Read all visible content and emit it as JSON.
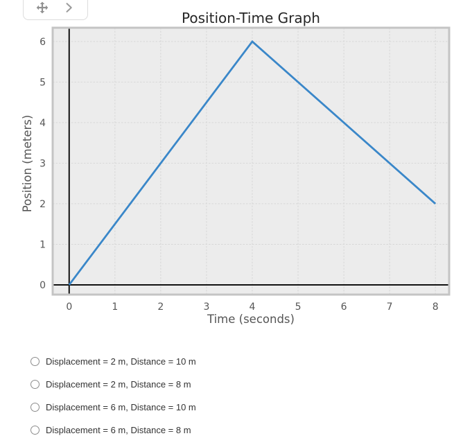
{
  "toolbar": {
    "tools": [
      {
        "icon": "move-icon"
      },
      {
        "icon": "chevron-right-icon"
      }
    ]
  },
  "chart_data": {
    "type": "line",
    "title": "Position-Time Graph",
    "xlabel": "Time (seconds)",
    "ylabel": "Position (meters)",
    "x": [
      0,
      4,
      8
    ],
    "y": [
      0,
      6,
      2
    ],
    "xticks": [
      0,
      1,
      2,
      3,
      4,
      5,
      6,
      7,
      8
    ],
    "yticks": [
      0,
      1,
      2,
      3,
      4,
      5,
      6
    ],
    "xlim": [
      -0.36,
      8.3
    ],
    "ylim": [
      -0.24,
      6.34
    ],
    "grid": true,
    "legend": "none",
    "line_color": "#3a87c9",
    "plot_background": "#ececec",
    "grid_color": "#d7d7d7",
    "frame_color": "#c4c4c4",
    "axis_line_color": "#111111",
    "tick_color": "#555555"
  },
  "question": {
    "options": [
      {
        "label": "Displacement = 2 m, Distance = 10 m",
        "selected": false
      },
      {
        "label": "Displacement = 2 m, Distance = 8 m",
        "selected": false
      },
      {
        "label": "Displacement = 6 m, Distance = 10 m",
        "selected": false
      },
      {
        "label": "Displacement = 6 m, Distance = 8 m",
        "selected": false
      }
    ]
  }
}
